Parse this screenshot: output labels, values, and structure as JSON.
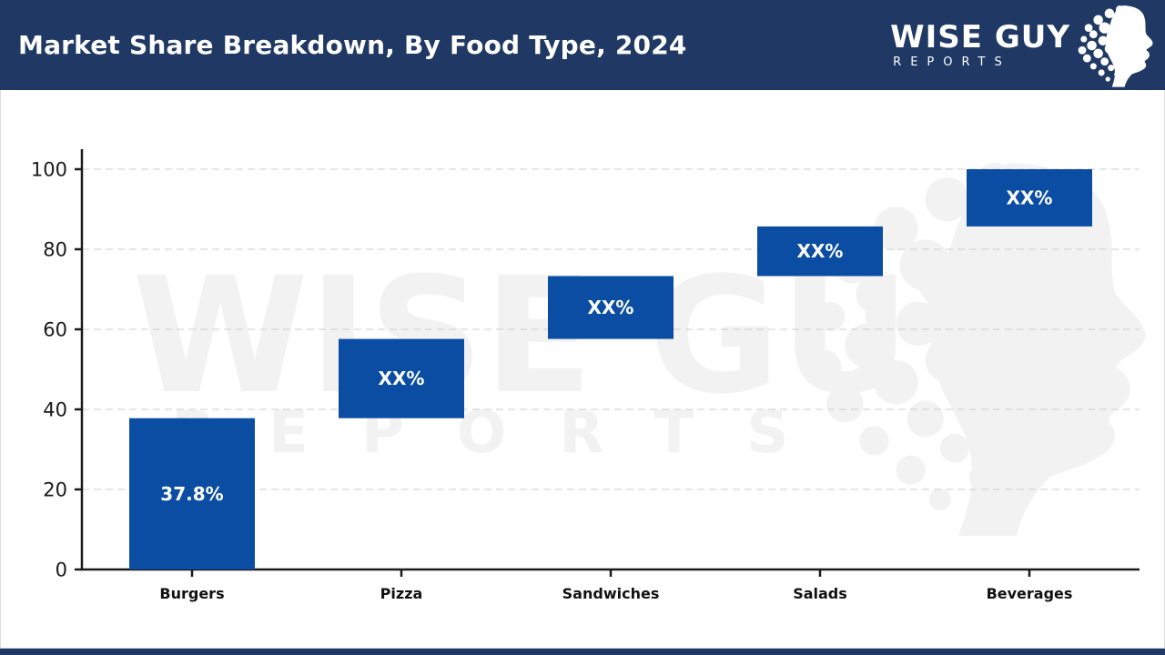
{
  "header": {
    "title": "Market Share Breakdown, By Food Type, 2024",
    "logo": {
      "wordmark": "WISE GUY",
      "subtext": "REPORTS"
    }
  },
  "watermark": {
    "line1": "WISE GUY",
    "line2": "REPORTS"
  },
  "chart_data": {
    "type": "bar",
    "subtype": "waterfall",
    "title": "Market Share Breakdown, By Food Type, 2024",
    "categories": [
      "Burgers",
      "Pizza",
      "Sandwiches",
      "Salads",
      "Beverages"
    ],
    "series": [
      {
        "name": "Market Share (%)",
        "segments": [
          {
            "category": "Burgers",
            "start": 0,
            "end": 37.8,
            "label": "37.8%"
          },
          {
            "category": "Pizza",
            "start": 37.8,
            "end": 57.6,
            "label": "XX%"
          },
          {
            "category": "Sandwiches",
            "start": 57.6,
            "end": 73.3,
            "label": "XX%"
          },
          {
            "category": "Salads",
            "start": 73.3,
            "end": 85.7,
            "label": "XX%"
          },
          {
            "category": "Beverages",
            "start": 85.7,
            "end": 100,
            "label": "XX%"
          }
        ]
      }
    ],
    "xlabel": "",
    "ylabel": "",
    "ylim": [
      0,
      105
    ],
    "yticks": [
      0,
      20,
      40,
      60,
      80,
      100
    ],
    "grid": "horizontal-dashed",
    "legend": "none",
    "colors": {
      "bar": "#0B4DA2",
      "bar_label": "#FFFFFF",
      "grid": "#D6D6D6",
      "axis": "#1A1A1A",
      "header_bg": "#1F3864",
      "watermark": "#F2F2F2"
    }
  }
}
